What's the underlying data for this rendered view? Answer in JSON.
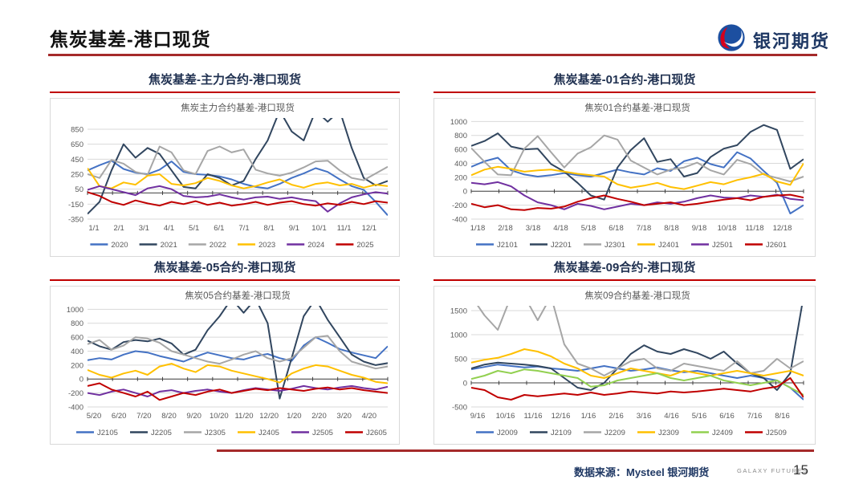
{
  "page": {
    "title": "焦炭基差-港口现货",
    "logo_text": "银河期货",
    "footer": {
      "source": "数据来源：Mysteel 银河期货",
      "brand": "GALAXY FUTURES",
      "page_number": "15"
    },
    "accent_red": "#C00000"
  },
  "chart_data": [
    {
      "type": "line",
      "panel_title": "焦炭基差-主力合约-港口现货",
      "title": "焦炭主力合约基差-港口现货",
      "grid": true,
      "legend_position": "bottom",
      "x_ticks": [
        "1/1",
        "2/1",
        "3/1",
        "4/1",
        "5/1",
        "6/1",
        "7/1",
        "8/1",
        "9/1",
        "10/1",
        "11/1",
        "12/1"
      ],
      "y_ticks": [
        850,
        650,
        450,
        250,
        50,
        -150,
        -350
      ],
      "ylim": [
        -350,
        1000
      ],
      "series": [
        {
          "name": "2020",
          "color": "#4472C4",
          "values": [
            300,
            370,
            430,
            320,
            270,
            250,
            310,
            420,
            280,
            250,
            240,
            220,
            180,
            120,
            80,
            60,
            120,
            200,
            260,
            330,
            280,
            180,
            90,
            40,
            -120,
            -300
          ]
        },
        {
          "name": "2021",
          "color": "#31465F",
          "values": [
            -280,
            -120,
            300,
            650,
            470,
            600,
            520,
            300,
            80,
            60,
            250,
            200,
            100,
            160,
            450,
            700,
            1100,
            820,
            700,
            1100,
            950,
            1100,
            600,
            200,
            100,
            160
          ]
        },
        {
          "name": "2022",
          "color": "#A6A6A6",
          "values": [
            250,
            200,
            440,
            390,
            280,
            240,
            620,
            540,
            300,
            250,
            560,
            620,
            540,
            580,
            310,
            260,
            230,
            270,
            340,
            420,
            430,
            300,
            200,
            170,
            260,
            350
          ]
        },
        {
          "name": "2023",
          "color": "#FFC000",
          "values": [
            330,
            90,
            60,
            140,
            110,
            230,
            250,
            120,
            100,
            130,
            200,
            160,
            100,
            60,
            90,
            140,
            180,
            110,
            70,
            120,
            140,
            100,
            120,
            70,
            110,
            90
          ]
        },
        {
          "name": "2024",
          "color": "#7030A0",
          "values": [
            40,
            90,
            50,
            10,
            -30,
            60,
            90,
            50,
            -40,
            -60,
            -50,
            -20,
            -60,
            -90,
            -60,
            -50,
            -80,
            -60,
            -90,
            -110,
            -250,
            -140,
            -60,
            -20,
            10,
            -10
          ]
        },
        {
          "name": "2025",
          "color": "#C00000",
          "values": [
            10,
            -40,
            -120,
            -160,
            -100,
            -140,
            -170,
            -120,
            -150,
            -110,
            -160,
            -130,
            -170,
            -150,
            -120,
            -160,
            -130,
            -110,
            -150,
            -170,
            -140,
            -160,
            -120,
            -150,
            -110,
            -130
          ]
        }
      ]
    },
    {
      "type": "line",
      "panel_title": "焦炭基差-01合约-港口现货",
      "title": "焦炭01合约基差-港口现货",
      "grid": true,
      "legend_position": "bottom",
      "x_ticks": [
        "1/18",
        "2/18",
        "3/18",
        "4/18",
        "5/18",
        "6/18",
        "7/18",
        "8/18",
        "9/18",
        "10/18",
        "11/18",
        "12/18"
      ],
      "y_ticks": [
        1000,
        800,
        600,
        400,
        200,
        0,
        -200,
        -400
      ],
      "ylim": [
        -400,
        1050
      ],
      "series": [
        {
          "name": "J2101",
          "color": "#4472C4",
          "values": [
            350,
            430,
            480,
            300,
            240,
            210,
            230,
            260,
            230,
            210,
            260,
            310,
            270,
            240,
            330,
            290,
            430,
            480,
            390,
            340,
            560,
            470,
            290,
            120,
            -320,
            -200
          ]
        },
        {
          "name": "J2201",
          "color": "#31465F",
          "values": [
            650,
            720,
            830,
            640,
            600,
            610,
            390,
            280,
            120,
            -60,
            -120,
            340,
            590,
            760,
            420,
            460,
            210,
            260,
            490,
            610,
            660,
            850,
            950,
            880,
            320,
            460
          ]
        },
        {
          "name": "J2301",
          "color": "#A6A6A6",
          "values": [
            620,
            420,
            240,
            230,
            610,
            790,
            560,
            340,
            540,
            630,
            800,
            740,
            440,
            340,
            240,
            310,
            340,
            410,
            300,
            240,
            450,
            390,
            240,
            190,
            140,
            210
          ]
        },
        {
          "name": "J2401",
          "color": "#FFC000",
          "values": [
            230,
            310,
            350,
            320,
            280,
            300,
            310,
            280,
            250,
            230,
            210,
            100,
            50,
            80,
            120,
            60,
            30,
            80,
            130,
            100,
            160,
            200,
            250,
            140,
            90,
            400
          ]
        },
        {
          "name": "J2501",
          "color": "#7030A0",
          "values": [
            120,
            100,
            130,
            70,
            -60,
            -160,
            -200,
            -260,
            -180,
            -210,
            -260,
            -220,
            -180,
            -200,
            -160,
            -180,
            -150,
            -100,
            -60,
            -90,
            -100,
            -60,
            -80,
            -50,
            -110,
            -130
          ]
        },
        {
          "name": "J2601",
          "color": "#C00000",
          "values": [
            -180,
            -230,
            -200,
            -260,
            -270,
            -240,
            -250,
            -220,
            -150,
            -100,
            -60,
            -110,
            -150,
            -200,
            -180,
            -160,
            -200,
            -180,
            -150,
            -120,
            -100,
            -130,
            -80,
            -60,
            -50,
            -90
          ]
        }
      ]
    },
    {
      "type": "line",
      "panel_title": "焦炭基差-05合约-港口现货",
      "title": "焦炭05合约基差-港口现货",
      "grid": true,
      "legend_position": "bottom",
      "x_ticks": [
        "5/20",
        "6/20",
        "7/20",
        "8/20",
        "9/20",
        "10/20",
        "11/20",
        "12/20",
        "1/20",
        "2/20",
        "3/20",
        "4/20"
      ],
      "y_ticks": [
        1000,
        800,
        600,
        400,
        200,
        0,
        -200,
        -400
      ],
      "ylim": [
        -400,
        1050
      ],
      "series": [
        {
          "name": "J2105",
          "color": "#4472C4",
          "values": [
            270,
            300,
            280,
            350,
            400,
            380,
            330,
            290,
            250,
            320,
            380,
            340,
            300,
            280,
            330,
            360,
            300,
            260,
            480,
            600,
            520,
            430,
            380,
            340,
            300,
            470
          ]
        },
        {
          "name": "J2205",
          "color": "#31465F",
          "values": [
            550,
            470,
            420,
            530,
            560,
            540,
            580,
            510,
            350,
            420,
            700,
            900,
            1150,
            950,
            1150,
            800,
            -280,
            300,
            900,
            1150,
            850,
            600,
            350,
            250,
            200,
            230
          ]
        },
        {
          "name": "J2305",
          "color": "#A6A6A6",
          "values": [
            500,
            560,
            420,
            480,
            600,
            580,
            520,
            400,
            350,
            300,
            250,
            220,
            280,
            350,
            400,
            300,
            250,
            300,
            450,
            600,
            620,
            400,
            250,
            200,
            150,
            180
          ]
        },
        {
          "name": "J2405",
          "color": "#FFC000",
          "values": [
            130,
            60,
            20,
            80,
            120,
            60,
            180,
            220,
            150,
            100,
            200,
            180,
            120,
            80,
            40,
            0,
            -50,
            80,
            150,
            200,
            180,
            120,
            60,
            20,
            -40,
            -60
          ]
        },
        {
          "name": "J2505",
          "color": "#7030A0",
          "values": [
            -200,
            -230,
            -180,
            -150,
            -200,
            -250,
            -180,
            -160,
            -200,
            -170,
            -150,
            -180,
            -200,
            -160,
            -130,
            -150,
            -170,
            -140,
            -100,
            -130,
            -150,
            -120,
            -100,
            -130,
            -150,
            -110
          ]
        },
        {
          "name": "J2605",
          "color": "#C00000",
          "values": [
            -100,
            -60,
            -150,
            -200,
            -250,
            -180,
            -300,
            -250,
            -200,
            -230,
            -180,
            -150,
            -200,
            -170,
            -140,
            -160,
            -130,
            -150,
            -170,
            -140,
            -120,
            -150,
            -130,
            -160,
            -180,
            -200
          ]
        }
      ]
    },
    {
      "type": "line",
      "panel_title": "焦炭基差-09合约-港口现货",
      "title": "焦炭09合约基差-港口现货",
      "grid": true,
      "legend_position": "bottom",
      "x_ticks": [
        "9/16",
        "10/16",
        "11/16",
        "12/16",
        "1/16",
        "2/16",
        "3/16",
        "4/16",
        "5/16",
        "6/16",
        "7/16",
        "8/16"
      ],
      "y_ticks": [
        1500,
        1000,
        500,
        0,
        -500
      ],
      "ylim": [
        -500,
        1600
      ],
      "series": [
        {
          "name": "J2009",
          "color": "#4472C4",
          "values": [
            280,
            330,
            380,
            350,
            320,
            340,
            300,
            280,
            250,
            300,
            350,
            300,
            250,
            280,
            320,
            260,
            220,
            250,
            200,
            150,
            100,
            150,
            100,
            50,
            -100,
            -350
          ]
        },
        {
          "name": "J2109",
          "color": "#31465F",
          "values": [
            300,
            380,
            420,
            400,
            380,
            350,
            300,
            100,
            -100,
            -150,
            0,
            300,
            600,
            780,
            650,
            600,
            700,
            620,
            500,
            650,
            400,
            200,
            100,
            -150,
            200,
            1800
          ]
        },
        {
          "name": "J2209",
          "color": "#A6A6A6",
          "values": [
            1800,
            1400,
            1100,
            1800,
            1800,
            1300,
            1800,
            800,
            400,
            300,
            150,
            300,
            450,
            500,
            300,
            250,
            400,
            350,
            300,
            250,
            450,
            200,
            250,
            500,
            300,
            450
          ]
        },
        {
          "name": "J2309",
          "color": "#FFC000",
          "values": [
            420,
            480,
            520,
            600,
            700,
            650,
            550,
            400,
            300,
            150,
            100,
            200,
            300,
            250,
            200,
            150,
            250,
            200,
            150,
            200,
            250,
            200,
            150,
            200,
            250,
            150
          ]
        },
        {
          "name": "J2409",
          "color": "#92D050",
          "values": [
            80,
            150,
            250,
            200,
            280,
            250,
            200,
            150,
            100,
            -80,
            -50,
            50,
            100,
            150,
            200,
            100,
            50,
            100,
            150,
            50,
            0,
            -50,
            0,
            50,
            -100,
            -250
          ]
        },
        {
          "name": "J2509",
          "color": "#C00000",
          "values": [
            -100,
            -150,
            -300,
            -350,
            -250,
            -280,
            -250,
            -220,
            -250,
            -200,
            -250,
            -220,
            -180,
            -200,
            -220,
            -180,
            -200,
            -180,
            -150,
            -120,
            -150,
            -180,
            -120,
            -80,
            100,
            -300
          ]
        }
      ]
    }
  ]
}
